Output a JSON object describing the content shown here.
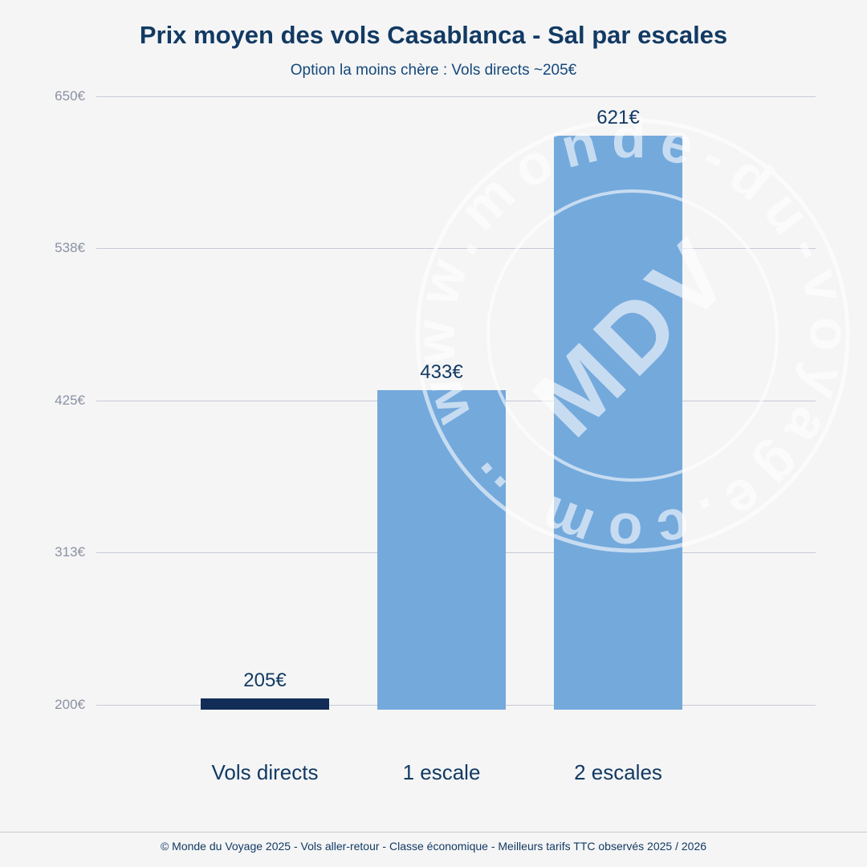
{
  "chart_data": {
    "type": "bar",
    "title": "Prix moyen des vols Casablanca - Sal par escales",
    "subtitle": "Option la moins chère : Vols directs ~205€",
    "categories": [
      "Vols directs",
      "1 escale",
      "2 escales"
    ],
    "values": [
      205,
      433,
      621
    ],
    "value_labels": [
      "205€",
      "433€",
      "621€"
    ],
    "unit": "€",
    "ylim": [
      200,
      650
    ],
    "yticks": [
      650,
      538,
      425,
      313,
      200
    ],
    "ytick_labels": [
      "650€",
      "538€",
      "425€",
      "313€",
      "200€"
    ],
    "grid": true,
    "legend": false,
    "bar_colors": [
      "#112d57",
      "#74a9dc",
      "#74a9dc"
    ]
  },
  "watermark": {
    "ring_text": "· www.monde-du-voyage.com ·",
    "center_text": "MDV"
  },
  "footer": {
    "text": "© Monde du Voyage 2025 - Vols aller-retour - Classe économique - Meilleurs tarifs TTC observés 2025 / 2026"
  },
  "colors": {
    "background": "#f5f5f6",
    "title": "#123a63",
    "subtitle": "#15487a",
    "axis_label": "#8b92a3",
    "gridline": "#c6cad5",
    "bar_primary": "#74a9dc",
    "bar_accent": "#112d57",
    "footer_text": "#123a63",
    "watermark": "#ffffff"
  }
}
